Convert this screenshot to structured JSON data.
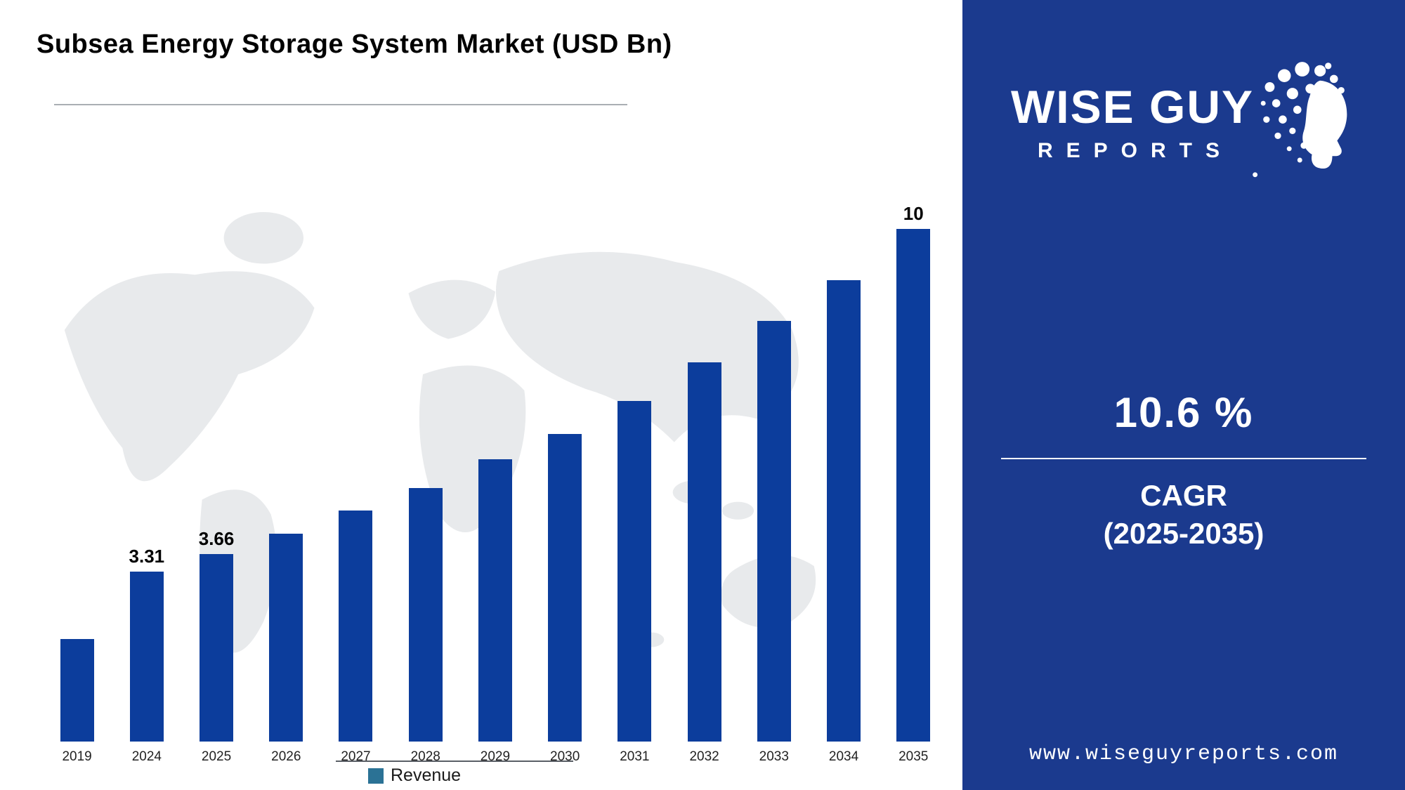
{
  "header": {
    "title": "Subsea Energy Storage System Market (USD Bn)"
  },
  "chart_data": {
    "type": "bar",
    "title": "Subsea Energy Storage System Market (USD Bn)",
    "categories": [
      "2019",
      "2024",
      "2025",
      "2026",
      "2027",
      "2028",
      "2029",
      "2030",
      "2031",
      "2032",
      "2033",
      "2034",
      "2035"
    ],
    "values": [
      2.0,
      3.31,
      3.66,
      4.05,
      4.5,
      4.95,
      5.5,
      6.0,
      6.65,
      7.4,
      8.2,
      9.0,
      10
    ],
    "data_labels": [
      "",
      "3.31",
      "3.66",
      "",
      "",
      "",
      "",
      "",
      "",
      "",
      "",
      "",
      "10"
    ],
    "ylim": [
      0,
      10
    ],
    "grid": false,
    "bar_color": "#0c3d9c",
    "legend_position": "bottom",
    "legend": [
      {
        "name": "Revenue",
        "color": "#2b7295"
      }
    ]
  },
  "sidebar": {
    "logo_line1": "WISE GUY",
    "logo_line2": "REPORTS",
    "cagr_value": "10.6 %",
    "cagr_label": "CAGR",
    "cagr_range": "(2025-2035)",
    "website": "www.wiseguyreports.com",
    "background_color": "#1b3a8e"
  }
}
